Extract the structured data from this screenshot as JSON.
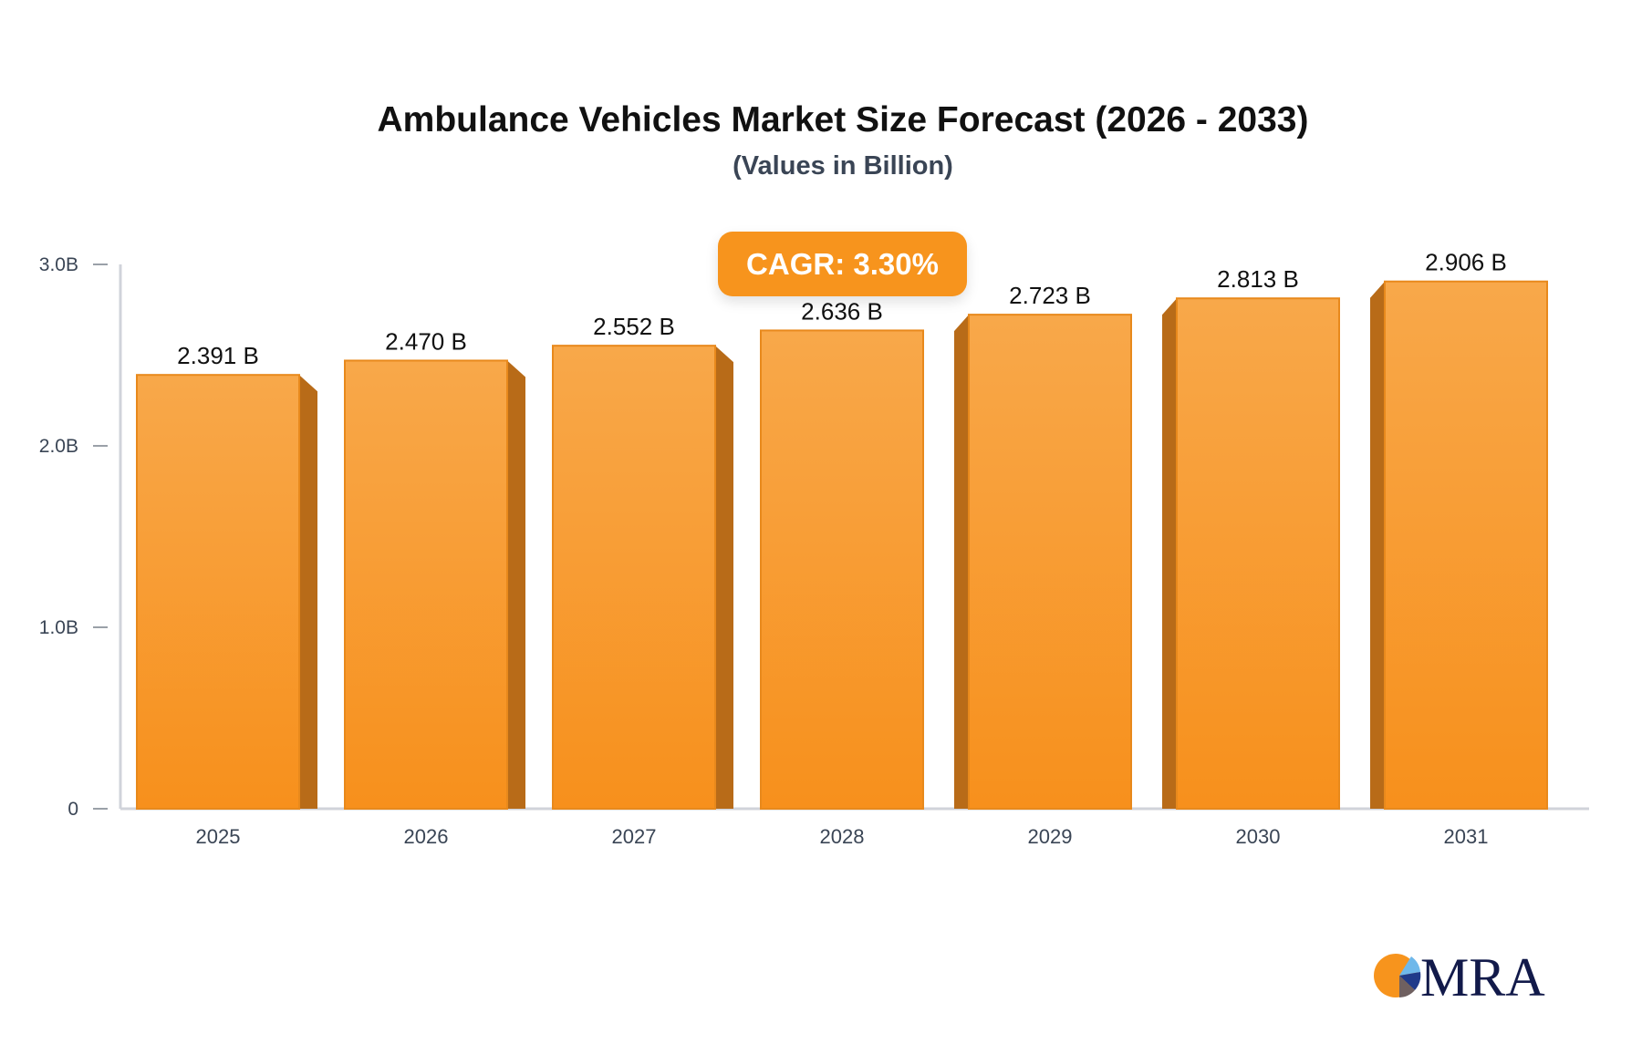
{
  "chart_data": {
    "type": "bar",
    "title": "Ambulance Vehicles Market Size Forecast (2026 - 2033)",
    "subtitle": "(Values in Billion)",
    "categories": [
      "2025",
      "2026",
      "2027",
      "2028",
      "2029",
      "2030",
      "2031"
    ],
    "values": [
      2.391,
      2.47,
      2.552,
      2.636,
      2.723,
      2.813,
      2.906
    ],
    "data_labels": [
      "2.391 B",
      "2.470 B",
      "2.552 B",
      "2.636 B",
      "2.723 B",
      "2.813 B",
      "2.906 B"
    ],
    "yticks": [
      {
        "v": 0,
        "label": "0"
      },
      {
        "v": 1,
        "label": "1.0B"
      },
      {
        "v": 2,
        "label": "2.0B"
      },
      {
        "v": 3,
        "label": "3.0B"
      }
    ],
    "ylim": [
      0,
      3
    ],
    "grid": false,
    "annotation": "CAGR: 3.30%",
    "colors": {
      "bar": "#f7941d",
      "bar_top": "#f8a84a",
      "bar_side": "#b86b18",
      "axis": "#d0d3da",
      "badge": "#f7941d"
    }
  },
  "logo": {
    "text": "MRA"
  }
}
